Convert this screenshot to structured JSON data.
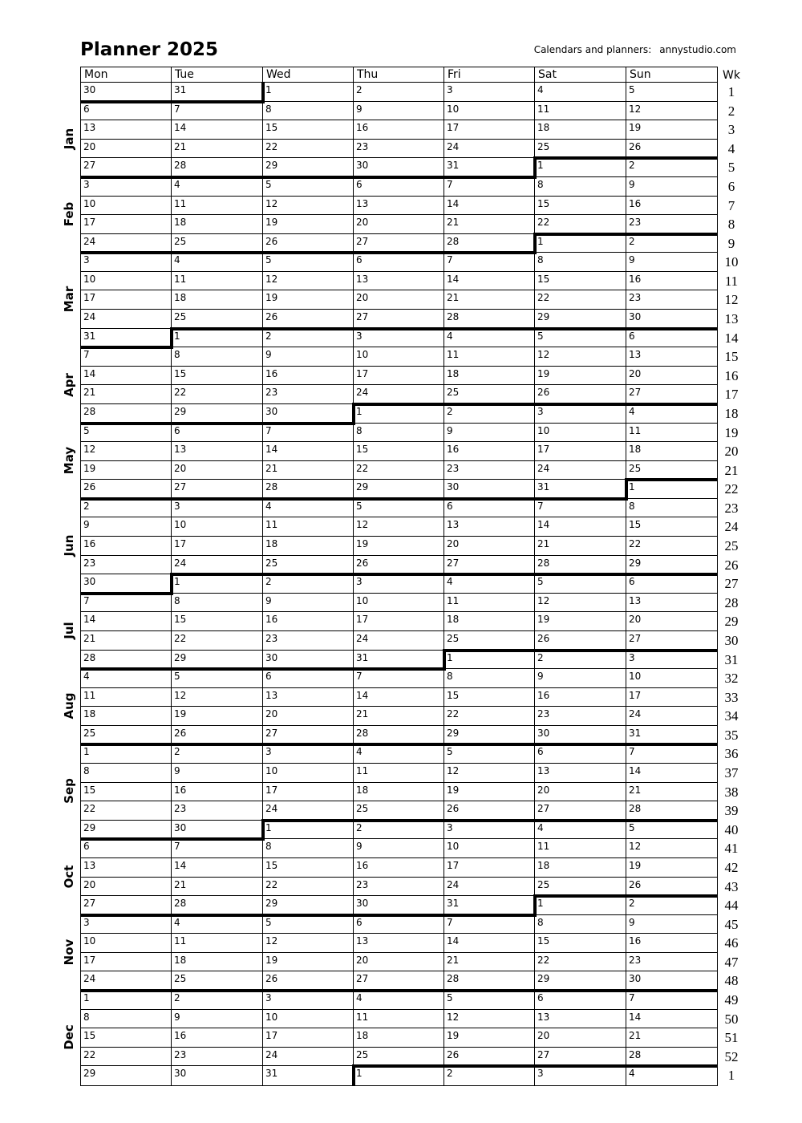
{
  "page": {
    "title": "Planner 2025",
    "credit_label": "Calendars and planners:",
    "credit_site": "annystudio.com"
  },
  "colors": {
    "ink": "#000000",
    "paper": "#ffffff"
  },
  "calendar": {
    "year": "2025",
    "day_headers": [
      "Mon",
      "Tue",
      "Wed",
      "Thu",
      "Fri",
      "Sat",
      "Sun"
    ],
    "week_header": "Wk",
    "months": [
      {
        "label": "Jan",
        "from_week_row": 2,
        "to_week_row": 5
      },
      {
        "label": "Feb",
        "from_week_row": 6,
        "to_week_row": 9
      },
      {
        "label": "Mar",
        "from_week_row": 10,
        "to_week_row": 14
      },
      {
        "label": "Apr",
        "from_week_row": 15,
        "to_week_row": 18
      },
      {
        "label": "May",
        "from_week_row": 19,
        "to_week_row": 22
      },
      {
        "label": "Jun",
        "from_week_row": 23,
        "to_week_row": 27
      },
      {
        "label": "Jul",
        "from_week_row": 28,
        "to_week_row": 31
      },
      {
        "label": "Aug",
        "from_week_row": 32,
        "to_week_row": 35
      },
      {
        "label": "Sep",
        "from_week_row": 36,
        "to_week_row": 40
      },
      {
        "label": "Oct",
        "from_week_row": 41,
        "to_week_row": 44
      },
      {
        "label": "Nov",
        "from_week_row": 45,
        "to_week_row": 48
      },
      {
        "label": "Dec",
        "from_week_row": 49,
        "to_week_row": 53
      }
    ],
    "weeks": [
      {
        "wk": "1",
        "days": [
          "30",
          "31",
          "1",
          "2",
          "3",
          "4",
          "5"
        ],
        "month_start_col": 2
      },
      {
        "wk": "2",
        "days": [
          "6",
          "7",
          "8",
          "9",
          "10",
          "11",
          "12"
        ],
        "month_start_col": -1
      },
      {
        "wk": "3",
        "days": [
          "13",
          "14",
          "15",
          "16",
          "17",
          "18",
          "19"
        ],
        "month_start_col": -1
      },
      {
        "wk": "4",
        "days": [
          "20",
          "21",
          "22",
          "23",
          "24",
          "25",
          "26"
        ],
        "month_start_col": -1
      },
      {
        "wk": "5",
        "days": [
          "27",
          "28",
          "29",
          "30",
          "31",
          "1",
          "2"
        ],
        "month_start_col": 5
      },
      {
        "wk": "6",
        "days": [
          "3",
          "4",
          "5",
          "6",
          "7",
          "8",
          "9"
        ],
        "month_start_col": -1
      },
      {
        "wk": "7",
        "days": [
          "10",
          "11",
          "12",
          "13",
          "14",
          "15",
          "16"
        ],
        "month_start_col": -1
      },
      {
        "wk": "8",
        "days": [
          "17",
          "18",
          "19",
          "20",
          "21",
          "22",
          "23"
        ],
        "month_start_col": -1
      },
      {
        "wk": "9",
        "days": [
          "24",
          "25",
          "26",
          "27",
          "28",
          "1",
          "2"
        ],
        "month_start_col": 5
      },
      {
        "wk": "10",
        "days": [
          "3",
          "4",
          "5",
          "6",
          "7",
          "8",
          "9"
        ],
        "month_start_col": -1
      },
      {
        "wk": "11",
        "days": [
          "10",
          "11",
          "12",
          "13",
          "14",
          "15",
          "16"
        ],
        "month_start_col": -1
      },
      {
        "wk": "12",
        "days": [
          "17",
          "18",
          "19",
          "20",
          "21",
          "22",
          "23"
        ],
        "month_start_col": -1
      },
      {
        "wk": "13",
        "days": [
          "24",
          "25",
          "26",
          "27",
          "28",
          "29",
          "30"
        ],
        "month_start_col": -1
      },
      {
        "wk": "14",
        "days": [
          "31",
          "1",
          "2",
          "3",
          "4",
          "5",
          "6"
        ],
        "month_start_col": 1
      },
      {
        "wk": "15",
        "days": [
          "7",
          "8",
          "9",
          "10",
          "11",
          "12",
          "13"
        ],
        "month_start_col": -1
      },
      {
        "wk": "16",
        "days": [
          "14",
          "15",
          "16",
          "17",
          "18",
          "19",
          "20"
        ],
        "month_start_col": -1
      },
      {
        "wk": "17",
        "days": [
          "21",
          "22",
          "23",
          "24",
          "25",
          "26",
          "27"
        ],
        "month_start_col": -1
      },
      {
        "wk": "18",
        "days": [
          "28",
          "29",
          "30",
          "1",
          "2",
          "3",
          "4"
        ],
        "month_start_col": 3
      },
      {
        "wk": "19",
        "days": [
          "5",
          "6",
          "7",
          "8",
          "9",
          "10",
          "11"
        ],
        "month_start_col": -1
      },
      {
        "wk": "20",
        "days": [
          "12",
          "13",
          "14",
          "15",
          "16",
          "17",
          "18"
        ],
        "month_start_col": -1
      },
      {
        "wk": "21",
        "days": [
          "19",
          "20",
          "21",
          "22",
          "23",
          "24",
          "25"
        ],
        "month_start_col": -1
      },
      {
        "wk": "22",
        "days": [
          "26",
          "27",
          "28",
          "29",
          "30",
          "31",
          "1"
        ],
        "month_start_col": 6
      },
      {
        "wk": "23",
        "days": [
          "2",
          "3",
          "4",
          "5",
          "6",
          "7",
          "8"
        ],
        "month_start_col": -1
      },
      {
        "wk": "24",
        "days": [
          "9",
          "10",
          "11",
          "12",
          "13",
          "14",
          "15"
        ],
        "month_start_col": -1
      },
      {
        "wk": "25",
        "days": [
          "16",
          "17",
          "18",
          "19",
          "20",
          "21",
          "22"
        ],
        "month_start_col": -1
      },
      {
        "wk": "26",
        "days": [
          "23",
          "24",
          "25",
          "26",
          "27",
          "28",
          "29"
        ],
        "month_start_col": -1
      },
      {
        "wk": "27",
        "days": [
          "30",
          "1",
          "2",
          "3",
          "4",
          "5",
          "6"
        ],
        "month_start_col": 1
      },
      {
        "wk": "28",
        "days": [
          "7",
          "8",
          "9",
          "10",
          "11",
          "12",
          "13"
        ],
        "month_start_col": -1
      },
      {
        "wk": "29",
        "days": [
          "14",
          "15",
          "16",
          "17",
          "18",
          "19",
          "20"
        ],
        "month_start_col": -1
      },
      {
        "wk": "30",
        "days": [
          "21",
          "22",
          "23",
          "24",
          "25",
          "26",
          "27"
        ],
        "month_start_col": -1
      },
      {
        "wk": "31",
        "days": [
          "28",
          "29",
          "30",
          "31",
          "1",
          "2",
          "3"
        ],
        "month_start_col": 4
      },
      {
        "wk": "32",
        "days": [
          "4",
          "5",
          "6",
          "7",
          "8",
          "9",
          "10"
        ],
        "month_start_col": -1
      },
      {
        "wk": "33",
        "days": [
          "11",
          "12",
          "13",
          "14",
          "15",
          "16",
          "17"
        ],
        "month_start_col": -1
      },
      {
        "wk": "34",
        "days": [
          "18",
          "19",
          "20",
          "21",
          "22",
          "23",
          "24"
        ],
        "month_start_col": -1
      },
      {
        "wk": "35",
        "days": [
          "25",
          "26",
          "27",
          "28",
          "29",
          "30",
          "31"
        ],
        "month_start_col": -1
      },
      {
        "wk": "36",
        "days": [
          "1",
          "2",
          "3",
          "4",
          "5",
          "6",
          "7"
        ],
        "month_start_col": 0
      },
      {
        "wk": "37",
        "days": [
          "8",
          "9",
          "10",
          "11",
          "12",
          "13",
          "14"
        ],
        "month_start_col": -1
      },
      {
        "wk": "38",
        "days": [
          "15",
          "16",
          "17",
          "18",
          "19",
          "20",
          "21"
        ],
        "month_start_col": -1
      },
      {
        "wk": "39",
        "days": [
          "22",
          "23",
          "24",
          "25",
          "26",
          "27",
          "28"
        ],
        "month_start_col": -1
      },
      {
        "wk": "40",
        "days": [
          "29",
          "30",
          "1",
          "2",
          "3",
          "4",
          "5"
        ],
        "month_start_col": 2
      },
      {
        "wk": "41",
        "days": [
          "6",
          "7",
          "8",
          "9",
          "10",
          "11",
          "12"
        ],
        "month_start_col": -1
      },
      {
        "wk": "42",
        "days": [
          "13",
          "14",
          "15",
          "16",
          "17",
          "18",
          "19"
        ],
        "month_start_col": -1
      },
      {
        "wk": "43",
        "days": [
          "20",
          "21",
          "22",
          "23",
          "24",
          "25",
          "26"
        ],
        "month_start_col": -1
      },
      {
        "wk": "44",
        "days": [
          "27",
          "28",
          "29",
          "30",
          "31",
          "1",
          "2"
        ],
        "month_start_col": 5
      },
      {
        "wk": "45",
        "days": [
          "3",
          "4",
          "5",
          "6",
          "7",
          "8",
          "9"
        ],
        "month_start_col": -1
      },
      {
        "wk": "46",
        "days": [
          "10",
          "11",
          "12",
          "13",
          "14",
          "15",
          "16"
        ],
        "month_start_col": -1
      },
      {
        "wk": "47",
        "days": [
          "17",
          "18",
          "19",
          "20",
          "21",
          "22",
          "23"
        ],
        "month_start_col": -1
      },
      {
        "wk": "48",
        "days": [
          "24",
          "25",
          "26",
          "27",
          "28",
          "29",
          "30"
        ],
        "month_start_col": -1
      },
      {
        "wk": "49",
        "days": [
          "1",
          "2",
          "3",
          "4",
          "5",
          "6",
          "7"
        ],
        "month_start_col": 0
      },
      {
        "wk": "50",
        "days": [
          "8",
          "9",
          "10",
          "11",
          "12",
          "13",
          "14"
        ],
        "month_start_col": -1
      },
      {
        "wk": "51",
        "days": [
          "15",
          "16",
          "17",
          "18",
          "19",
          "20",
          "21"
        ],
        "month_start_col": -1
      },
      {
        "wk": "52",
        "days": [
          "22",
          "23",
          "24",
          "25",
          "26",
          "27",
          "28"
        ],
        "month_start_col": -1
      },
      {
        "wk": "1",
        "days": [
          "29",
          "30",
          "31",
          "1",
          "2",
          "3",
          "4"
        ],
        "month_start_col": 3
      }
    ]
  }
}
